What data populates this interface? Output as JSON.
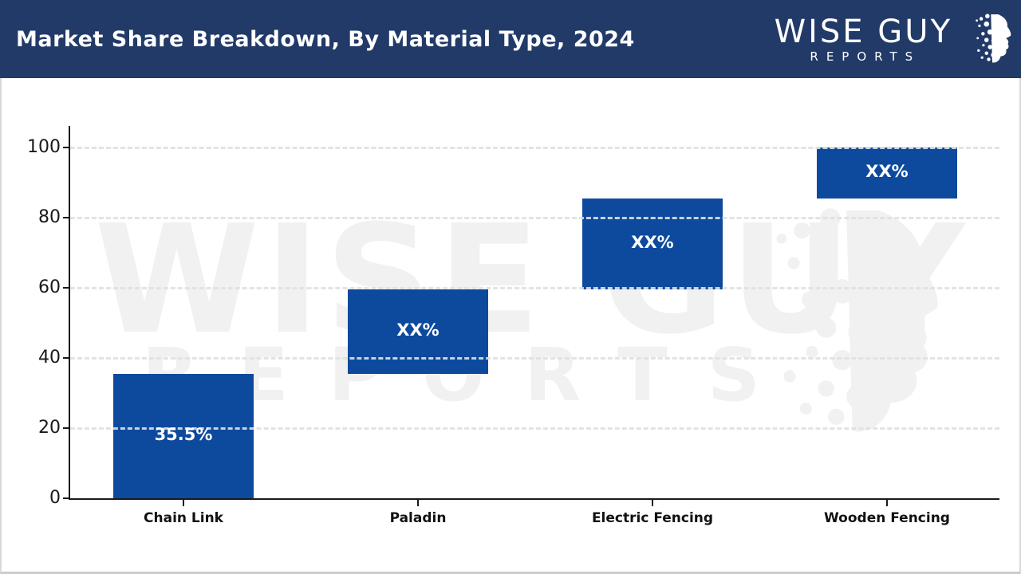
{
  "header": {
    "logo": {
      "line1": "WISE GUY",
      "line2": "REPORTS",
      "face_icon": "dotted-face-profile"
    }
  },
  "watermark": {
    "line1": "WISE GUY",
    "line2": "REPORTS"
  },
  "colors": {
    "header_bg": "#223a68",
    "bar": "#0d4a9e",
    "bar_label_text": "#ffffff",
    "watermark": "#f1f1f1",
    "gridline": "#e0e0e0",
    "axis": "#1a1a1a"
  },
  "chart_data": {
    "type": "bar",
    "subtype": "waterfall",
    "title": "Market Share Breakdown, By Material Type, 2024",
    "categories": [
      "Chain Link",
      "Paladin",
      "Electric Fencing",
      "Wooden Fencing"
    ],
    "segments": [
      {
        "category": "Chain Link",
        "start": 0,
        "end": 35.5,
        "label": "35.5%"
      },
      {
        "category": "Paladin",
        "start": 35.5,
        "end": 59.5,
        "label": "XX%"
      },
      {
        "category": "Electric Fencing",
        "start": 59.5,
        "end": 85.5,
        "label": "XX%"
      },
      {
        "category": "Wooden Fencing",
        "start": 85.5,
        "end": 100,
        "label": "XX%"
      }
    ],
    "bar_value_labels": [
      "35.5%",
      "XX%",
      "XX%",
      "XX%"
    ],
    "yticks": [
      0,
      20,
      40,
      60,
      80,
      100
    ],
    "ylim": [
      0,
      100
    ],
    "xlabel": "",
    "ylabel": "",
    "grid": "horizontal dashed",
    "legend": "none"
  }
}
